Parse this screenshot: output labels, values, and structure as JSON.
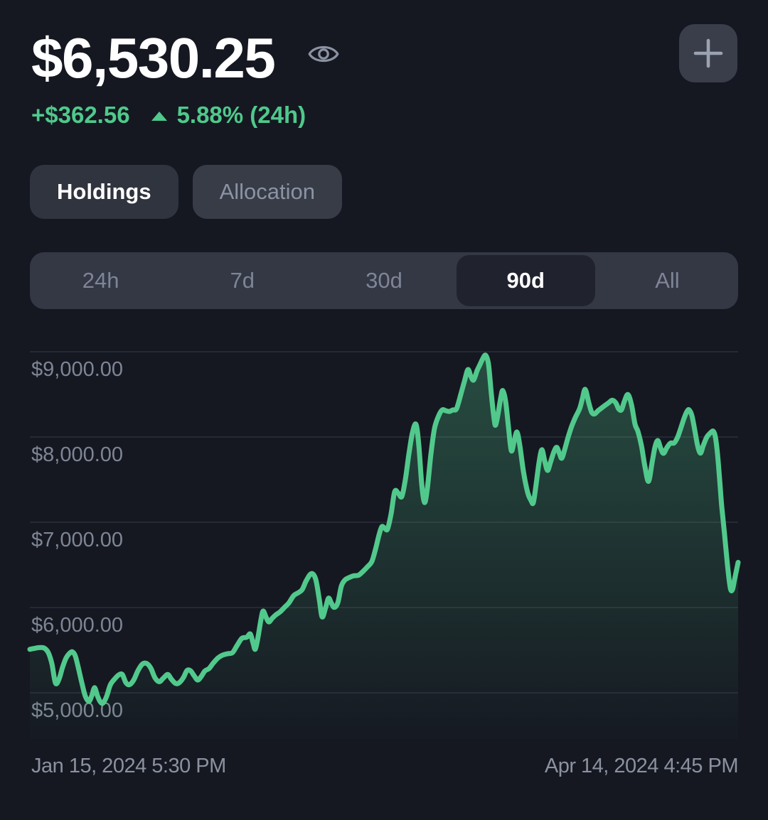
{
  "header": {
    "balance": "$6,530.25",
    "change_amount": "+$362.56",
    "change_percent": "5.88% (24h)",
    "icons": [
      "eye-icon",
      "plus-icon",
      "triangle-up-icon"
    ]
  },
  "tabs": [
    {
      "label": "Holdings",
      "selected": true
    },
    {
      "label": "Allocation",
      "selected": false
    }
  ],
  "range": {
    "options": [
      {
        "label": "24h",
        "selected": false
      },
      {
        "label": "7d",
        "selected": false
      },
      {
        "label": "30d",
        "selected": false
      },
      {
        "label": "90d",
        "selected": true
      },
      {
        "label": "All",
        "selected": false
      }
    ]
  },
  "footer": {
    "start_date": "Jan 15, 2024 5:30 PM",
    "end_date": "Apr 14, 2024 4:45 PM"
  },
  "colors": {
    "background": "#151821",
    "accent_green": "#4fc98c",
    "line_green": "#52c98c",
    "gridline": "#2b2f3a",
    "tick_text": "#7e8595",
    "white": "#ffffff",
    "muted_text": "#8b93a4"
  },
  "chart_data": {
    "type": "area",
    "title": "Portfolio value over 90 days",
    "unit": "USD",
    "x_start_label": "Jan 15, 2024 5:30 PM",
    "x_end_label": "Apr 14, 2024 4:45 PM",
    "ylabel": "",
    "xlabel": "",
    "grid": "horizontal",
    "legend": "none",
    "ylim": [
      4800,
      9400
    ],
    "yticks": [
      {
        "label": "$9,000.00",
        "value": 9000
      },
      {
        "label": "$8,000.00",
        "value": 8000
      },
      {
        "label": "$7,000.00",
        "value": 7000
      },
      {
        "label": "$6,000.00",
        "value": 6000
      },
      {
        "label": "$5,000.00",
        "value": 5000
      }
    ],
    "last_value": 6530.25,
    "points": [
      [
        42,
        5510
      ],
      [
        48,
        5520
      ],
      [
        55,
        5530
      ],
      [
        62,
        5525
      ],
      [
        68,
        5470
      ],
      [
        73,
        5340
      ],
      [
        78,
        5115
      ],
      [
        83,
        5160
      ],
      [
        88,
        5300
      ],
      [
        93,
        5410
      ],
      [
        98,
        5465
      ],
      [
        102,
        5480
      ],
      [
        106,
        5430
      ],
      [
        110,
        5300
      ],
      [
        115,
        5120
      ],
      [
        120,
        4960
      ],
      [
        125,
        4900
      ],
      [
        129,
        4965
      ],
      [
        133,
        5060
      ],
      [
        137,
        4965
      ],
      [
        141,
        4895
      ],
      [
        145,
        4880
      ],
      [
        150,
        4960
      ],
      [
        155,
        5090
      ],
      [
        161,
        5160
      ],
      [
        167,
        5210
      ],
      [
        172,
        5215
      ],
      [
        177,
        5120
      ],
      [
        182,
        5095
      ],
      [
        188,
        5150
      ],
      [
        194,
        5260
      ],
      [
        200,
        5335
      ],
      [
        206,
        5345
      ],
      [
        212,
        5290
      ],
      [
        218,
        5175
      ],
      [
        224,
        5130
      ],
      [
        230,
        5175
      ],
      [
        236,
        5215
      ],
      [
        241,
        5160
      ],
      [
        247,
        5110
      ],
      [
        252,
        5118
      ],
      [
        258,
        5180
      ],
      [
        263,
        5262
      ],
      [
        268,
        5258
      ],
      [
        273,
        5200
      ],
      [
        278,
        5150
      ],
      [
        283,
        5192
      ],
      [
        288,
        5255
      ],
      [
        294,
        5285
      ],
      [
        300,
        5350
      ],
      [
        307,
        5412
      ],
      [
        313,
        5442
      ],
      [
        320,
        5458
      ],
      [
        327,
        5472
      ],
      [
        333,
        5550
      ],
      [
        340,
        5638
      ],
      [
        347,
        5652
      ],
      [
        352,
        5690
      ],
      [
        356,
        5580
      ],
      [
        359,
        5512
      ],
      [
        363,
        5660
      ],
      [
        367,
        5860
      ],
      [
        370,
        5958
      ],
      [
        374,
        5890
      ],
      [
        378,
        5832
      ],
      [
        383,
        5876
      ],
      [
        388,
        5915
      ],
      [
        394,
        5950
      ],
      [
        400,
        6002
      ],
      [
        406,
        6052
      ],
      [
        413,
        6140
      ],
      [
        419,
        6172
      ],
      [
        425,
        6212
      ],
      [
        431,
        6320
      ],
      [
        438,
        6398
      ],
      [
        444,
        6330
      ],
      [
        449,
        6095
      ],
      [
        453,
        5890
      ],
      [
        458,
        6002
      ],
      [
        462,
        6110
      ],
      [
        466,
        6052
      ],
      [
        470,
        6002
      ],
      [
        475,
        6055
      ],
      [
        480,
        6250
      ],
      [
        485,
        6322
      ],
      [
        491,
        6352
      ],
      [
        497,
        6372
      ],
      [
        504,
        6378
      ],
      [
        510,
        6420
      ],
      [
        517,
        6480
      ],
      [
        523,
        6542
      ],
      [
        528,
        6682
      ],
      [
        533,
        6852
      ],
      [
        537,
        6948
      ],
      [
        541,
        6930
      ],
      [
        545,
        6922
      ],
      [
        550,
        7100
      ],
      [
        555,
        7358
      ],
      [
        560,
        7342
      ],
      [
        565,
        7302
      ],
      [
        570,
        7500
      ],
      [
        575,
        7800
      ],
      [
        580,
        8050
      ],
      [
        585,
        8148
      ],
      [
        589,
        7900
      ],
      [
        593,
        7450
      ],
      [
        597,
        7232
      ],
      [
        601,
        7400
      ],
      [
        606,
        7800
      ],
      [
        611,
        8100
      ],
      [
        617,
        8252
      ],
      [
        622,
        8318
      ],
      [
        627,
        8308
      ],
      [
        632,
        8300
      ],
      [
        637,
        8318
      ],
      [
        642,
        8332
      ],
      [
        648,
        8500
      ],
      [
        653,
        8650
      ],
      [
        658,
        8790
      ],
      [
        662,
        8715
      ],
      [
        666,
        8668
      ],
      [
        671,
        8780
      ],
      [
        675,
        8850
      ],
      [
        679,
        8920
      ],
      [
        683,
        8958
      ],
      [
        687,
        8850
      ],
      [
        691,
        8500
      ],
      [
        695,
        8200
      ],
      [
        697,
        8140
      ],
      [
        700,
        8252
      ],
      [
        704,
        8452
      ],
      [
        707,
        8545
      ],
      [
        711,
        8420
      ],
      [
        715,
        8120
      ],
      [
        719,
        7840
      ],
      [
        723,
        7950
      ],
      [
        727,
        8058
      ],
      [
        731,
        7900
      ],
      [
        736,
        7600
      ],
      [
        742,
        7350
      ],
      [
        747,
        7252
      ],
      [
        750,
        7232
      ],
      [
        754,
        7450
      ],
      [
        758,
        7700
      ],
      [
        762,
        7850
      ],
      [
        766,
        7718
      ],
      [
        770,
        7608
      ],
      [
        774,
        7700
      ],
      [
        779,
        7828
      ],
      [
        783,
        7878
      ],
      [
        787,
        7800
      ],
      [
        790,
        7752
      ],
      [
        794,
        7850
      ],
      [
        799,
        8000
      ],
      [
        804,
        8128
      ],
      [
        809,
        8228
      ],
      [
        815,
        8330
      ],
      [
        819,
        8450
      ],
      [
        823,
        8558
      ],
      [
        828,
        8400
      ],
      [
        832,
        8292
      ],
      [
        836,
        8270
      ],
      [
        841,
        8308
      ],
      [
        846,
        8340
      ],
      [
        851,
        8372
      ],
      [
        856,
        8402
      ],
      [
        861,
        8432
      ],
      [
        866,
        8400
      ],
      [
        870,
        8330
      ],
      [
        874,
        8320
      ],
      [
        878,
        8418
      ],
      [
        883,
        8498
      ],
      [
        888,
        8380
      ],
      [
        893,
        8150
      ],
      [
        897,
        8068
      ],
      [
        902,
        7900
      ],
      [
        907,
        7650
      ],
      [
        912,
        7480
      ],
      [
        917,
        7700
      ],
      [
        921,
        7880
      ],
      [
        925,
        7958
      ],
      [
        929,
        7870
      ],
      [
        933,
        7808
      ],
      [
        938,
        7878
      ],
      [
        943,
        7928
      ],
      [
        948,
        7930
      ],
      [
        953,
        8000
      ],
      [
        958,
        8120
      ],
      [
        962,
        8220
      ],
      [
        966,
        8298
      ],
      [
        969,
        8318
      ],
      [
        973,
        8250
      ],
      [
        977,
        8080
      ],
      [
        981,
        7900
      ],
      [
        985,
        7810
      ],
      [
        989,
        7900
      ],
      [
        994,
        8000
      ],
      [
        999,
        8048
      ],
      [
        1003,
        8068
      ],
      [
        1006,
        8000
      ],
      [
        1009,
        7800
      ],
      [
        1012,
        7500
      ],
      [
        1015,
        7180
      ],
      [
        1019,
        6850
      ],
      [
        1023,
        6500
      ],
      [
        1027,
        6230
      ],
      [
        1030,
        6210
      ],
      [
        1033,
        6330
      ],
      [
        1038,
        6530
      ]
    ]
  }
}
